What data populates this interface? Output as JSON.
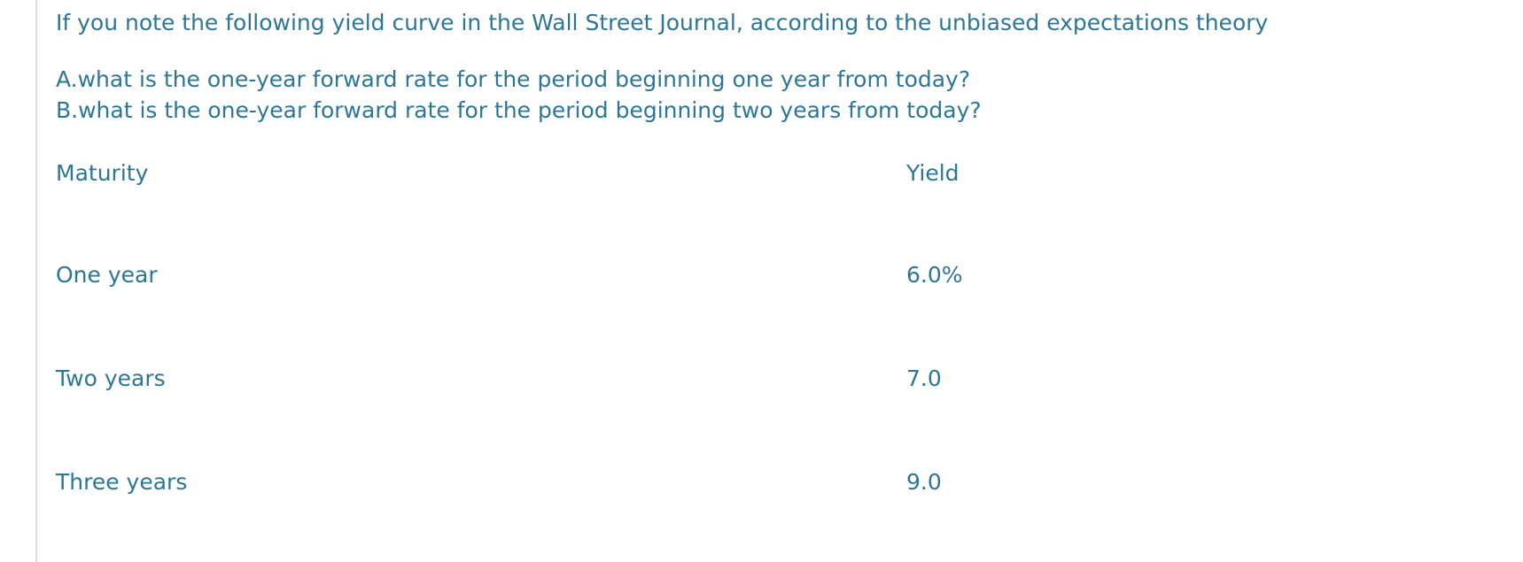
{
  "question": {
    "intro": "If you note the following yield curve in the Wall Street Journal, according to the unbiased expectations theory",
    "part_a": "A.what is the one-year forward rate for the period beginning one year from today?",
    "part_b": "B.what is the one-year forward rate for the period beginning two years from today?"
  },
  "yield_table": {
    "headers": {
      "maturity": "Maturity",
      "yield": "Yield"
    },
    "rows": [
      {
        "maturity": "One year",
        "yield": "6.0%"
      },
      {
        "maturity": "Two years",
        "yield": "7.0"
      },
      {
        "maturity": "Three years",
        "yield": "9.0"
      }
    ]
  },
  "colors": {
    "text": "#2d7696",
    "border": "#dcdcdc",
    "background": "#ffffff"
  }
}
